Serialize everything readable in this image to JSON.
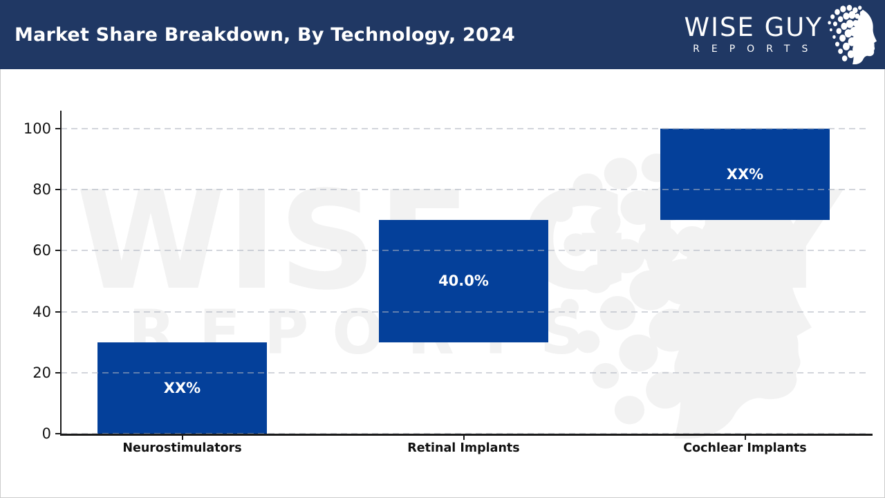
{
  "header": {
    "title": "Market Share Breakdown, By Technology, 2024",
    "logo": {
      "name": "WISE GUY",
      "tagline": "REPORTS"
    }
  },
  "watermark": {
    "line1": "WISE GUY",
    "line2": "REPORTS"
  },
  "chart_data": {
    "type": "bar",
    "subtype": "floating-segment waterfall (stacked market-share breakdown)",
    "title": "Market Share Breakdown, By Technology, 2024",
    "categories": [
      "Neurostimulators",
      "Retinal Implants",
      "Cochlear Implants"
    ],
    "series": [
      {
        "name": "Market share (%)",
        "segments": [
          {
            "category": "Neurostimulators",
            "from": 0,
            "to": 30,
            "label": "XX%"
          },
          {
            "category": "Retinal Implants",
            "from": 30,
            "to": 70,
            "label": "40.0%"
          },
          {
            "category": "Cochlear Implants",
            "from": 70,
            "to": 100,
            "label": "XX%"
          }
        ]
      }
    ],
    "bar_labels": [
      "XX%",
      "40.0%",
      "XX%"
    ],
    "yticks": [
      0,
      20,
      40,
      60,
      80,
      100
    ],
    "ylim": [
      0,
      106
    ],
    "xlabel": "",
    "ylabel": "",
    "grid": "horizontal dashed gridlines drawn over bars",
    "legend_position": "none",
    "colors": {
      "bar": "#04409a",
      "bar_label": "#ffffff",
      "grid": "#e0e0e0",
      "axis": "#1a1a1a",
      "tick_text": "#141414",
      "category_text": "#111111",
      "header_bg": "#203864",
      "header_text": "#ffffff",
      "watermark": "#f2f2f2"
    }
  }
}
